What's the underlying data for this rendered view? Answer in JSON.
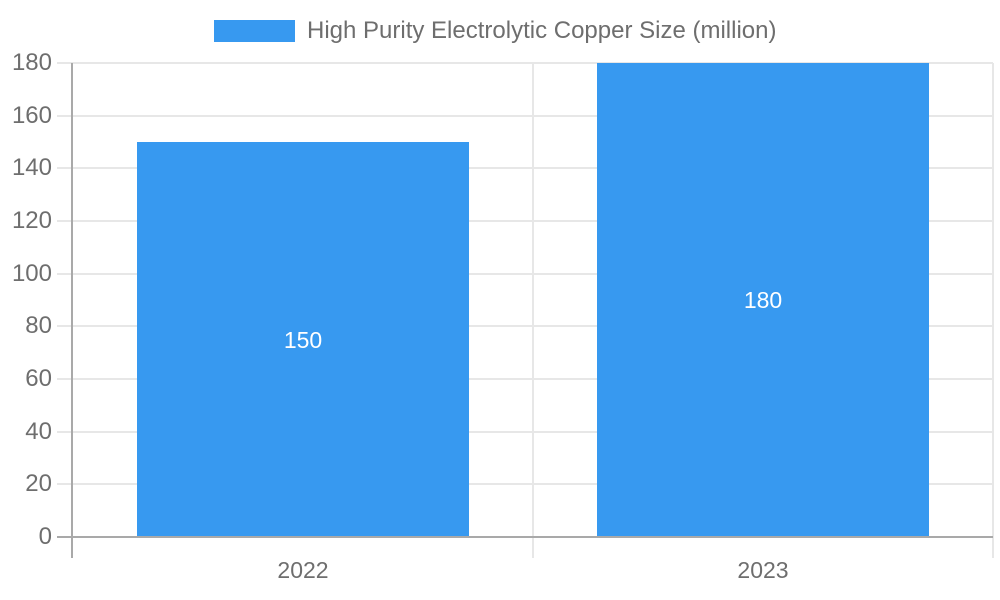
{
  "legend": {
    "position": "top-center",
    "items": [
      {
        "label": "High Purity Electrolytic Copper Size (million)",
        "color": "#3799f0"
      }
    ]
  },
  "chart_data": {
    "type": "bar",
    "title": "",
    "categories": [
      "2022",
      "2023"
    ],
    "series": [
      {
        "name": "High Purity Electrolytic Copper Size (million)",
        "color": "#3799f0",
        "values": [
          150,
          180
        ]
      }
    ],
    "data_labels": [
      "150",
      "180"
    ],
    "data_label_color": "#ffffff",
    "xlabel": "",
    "ylabel": "",
    "ylim": [
      0,
      180
    ],
    "ytick_step": 20,
    "yticks": [
      0,
      20,
      40,
      60,
      80,
      100,
      120,
      140,
      160,
      180
    ],
    "grid": true,
    "gridline_color": "#e7e7e7",
    "axis_line_color": "#a9a9a9",
    "axis_text_color": "#6e6e6e",
    "legend_position": "top-center"
  }
}
